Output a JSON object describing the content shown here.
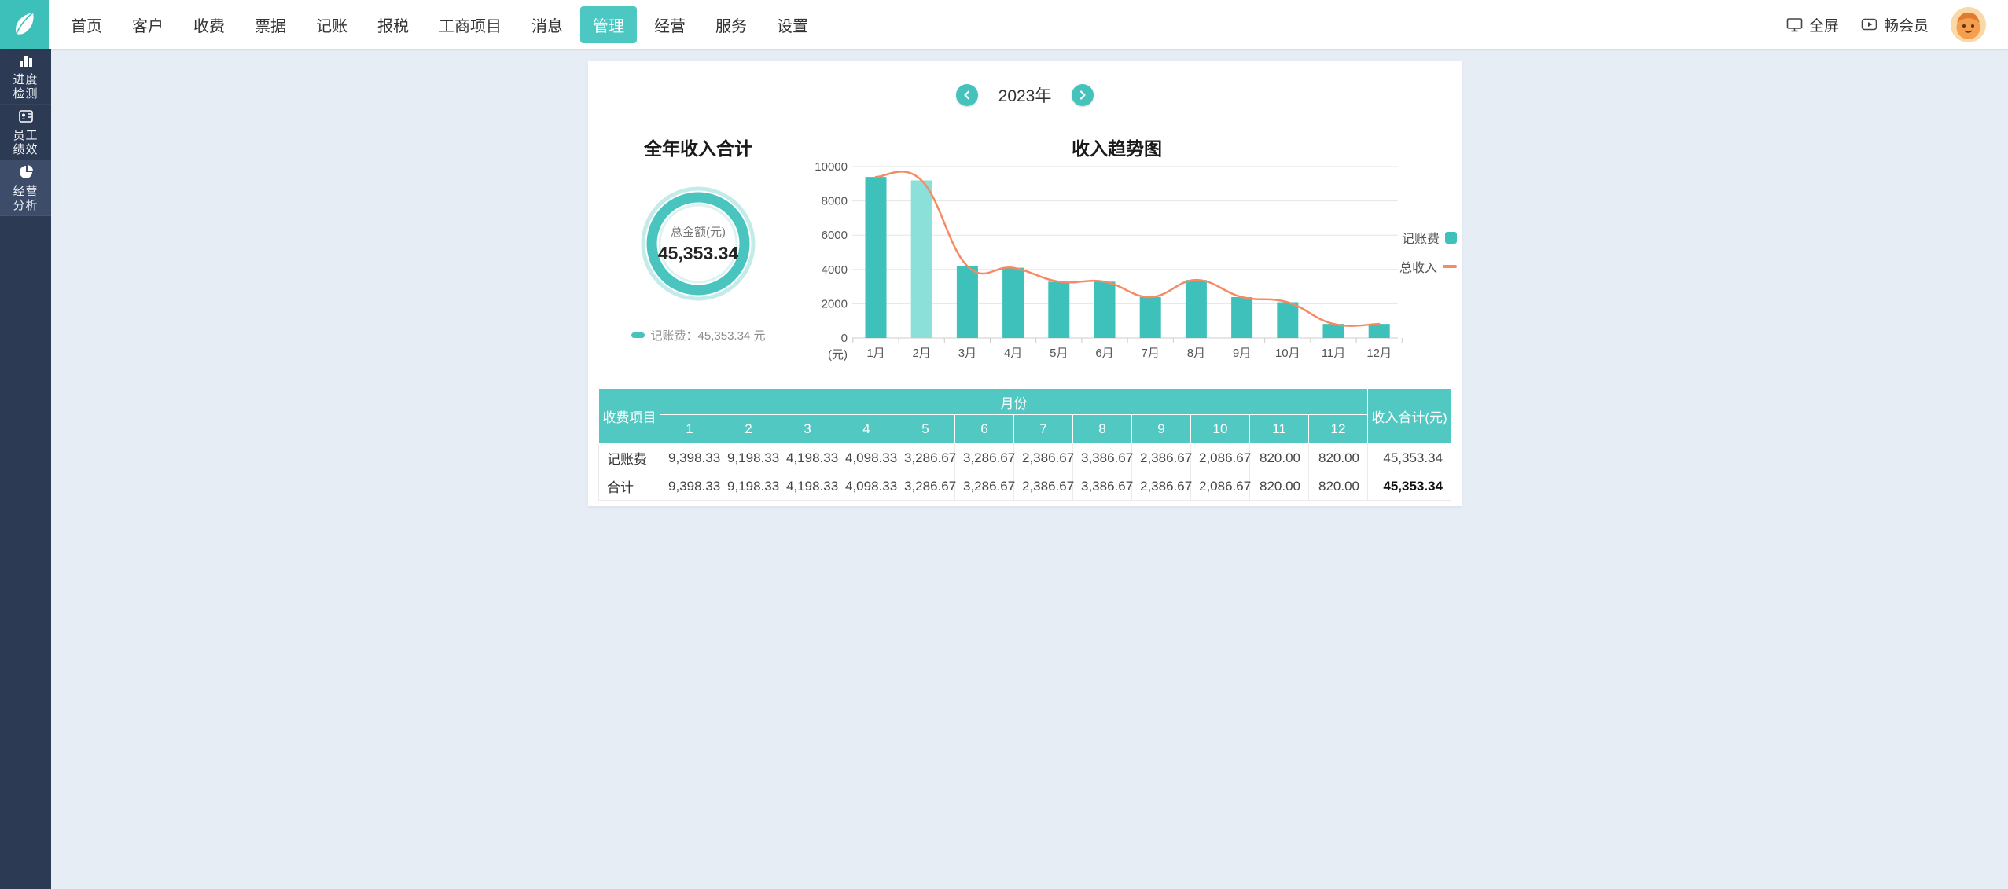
{
  "topbar": {
    "nav": [
      {
        "id": "home",
        "label": "首页",
        "active": false
      },
      {
        "id": "customers",
        "label": "客户",
        "active": false
      },
      {
        "id": "fees",
        "label": "收费",
        "active": false
      },
      {
        "id": "bills",
        "label": "票据",
        "active": false
      },
      {
        "id": "bookkeeping",
        "label": "记账",
        "active": false
      },
      {
        "id": "tax",
        "label": "报税",
        "active": false
      },
      {
        "id": "business-projects",
        "label": "工商项目",
        "active": false
      },
      {
        "id": "messages",
        "label": "消息",
        "active": false
      },
      {
        "id": "management",
        "label": "管理",
        "active": true
      },
      {
        "id": "operations",
        "label": "经营",
        "active": false
      },
      {
        "id": "services",
        "label": "服务",
        "active": false
      },
      {
        "id": "settings",
        "label": "设置",
        "active": false
      }
    ],
    "fullscreen_label": "全屏",
    "member_label": "畅会员"
  },
  "sidebar": {
    "items": [
      {
        "id": "progress-check",
        "label": "进度检测",
        "line1": "进度",
        "line2": "检测",
        "icon": "bar-chart",
        "active": false
      },
      {
        "id": "staff-performance",
        "label": "员工绩效",
        "line1": "员工",
        "line2": "绩效",
        "icon": "badge",
        "active": false
      },
      {
        "id": "business-analysis",
        "label": "经营分析",
        "line1": "经营",
        "line2": "分析",
        "icon": "pie-chart",
        "active": true
      }
    ]
  },
  "main": {
    "year": "2023年",
    "summary": {
      "title": "全年收入合计",
      "donut_label": "总金额(元)",
      "donut_value": "45,353.34",
      "legend": "记账费：45,353.34 元"
    },
    "trend": {
      "title": "收入趋势图"
    },
    "table": {
      "header": {
        "item": "收费项目",
        "month_group": "月份",
        "months": [
          "1",
          "2",
          "3",
          "4",
          "5",
          "6",
          "7",
          "8",
          "9",
          "10",
          "11",
          "12"
        ],
        "total": "收入合计(元)"
      },
      "rows": [
        {
          "id": "bookkeeping-fee",
          "name": "记账费",
          "values": [
            "9,398.33",
            "9,198.33",
            "4,198.33",
            "4,098.33",
            "3,286.67",
            "3,286.67",
            "2,386.67",
            "3,386.67",
            "2,386.67",
            "2,086.67",
            "820.00",
            "820.00"
          ],
          "total": "45,353.34",
          "bold": false
        },
        {
          "id": "total",
          "name": "合计",
          "values": [
            "9,398.33",
            "9,198.33",
            "4,198.33",
            "4,098.33",
            "3,286.67",
            "3,286.67",
            "2,386.67",
            "3,386.67",
            "2,386.67",
            "2,086.67",
            "820.00",
            "820.00"
          ],
          "total": "45,353.34",
          "bold": true
        }
      ]
    }
  },
  "chart_data": {
    "type": "bar+line",
    "title": "收入趋势图",
    "unit": "(元)",
    "categories": [
      "1月",
      "2月",
      "3月",
      "4月",
      "5月",
      "6月",
      "7月",
      "8月",
      "9月",
      "10月",
      "11月",
      "12月"
    ],
    "series": [
      {
        "name": "记账费",
        "type": "bar",
        "values": [
          9398.33,
          9198.33,
          4198.33,
          4098.33,
          3286.67,
          3286.67,
          2386.67,
          3386.67,
          2386.67,
          2086.67,
          820,
          820
        ],
        "highlight_index": 1
      },
      {
        "name": "总收入",
        "type": "line",
        "values": [
          9398.33,
          9198.33,
          4198.33,
          4098.33,
          3286.67,
          3286.67,
          2386.67,
          3386.67,
          2386.67,
          2086.67,
          820,
          820
        ]
      }
    ],
    "legend": [
      {
        "id": "bookkeeping-fee",
        "label": "记账费",
        "marker": "square",
        "color": "#3ec1ba"
      },
      {
        "id": "total-income",
        "label": "总收入",
        "marker": "line",
        "color": "#f58a65"
      }
    ],
    "ylim": [
      0,
      10000
    ],
    "yticks": [
      0,
      2000,
      4000,
      6000,
      8000,
      10000
    ],
    "grid": true,
    "legend_position": "right"
  },
  "colors": {
    "accent": "#45c2bc",
    "bar": "#3ec1ba",
    "bar_highlight": "#8ce0da",
    "line": "#f58a65",
    "sidebar_bg": "#2d3a53",
    "table_header_bg": "#52c8c2",
    "logo_bg": "#3dc0ba"
  }
}
